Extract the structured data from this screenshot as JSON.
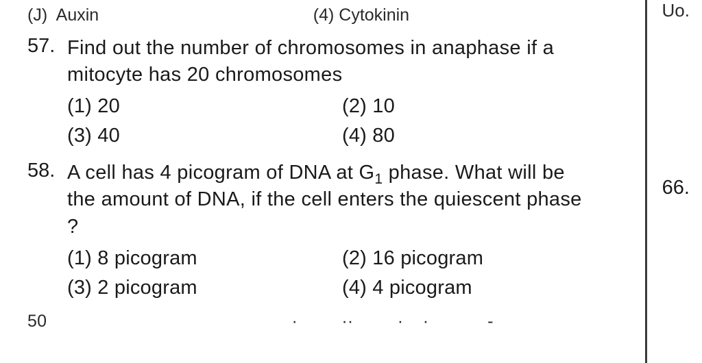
{
  "partial_top": "(J)  Auxin                                             (4) Cytokinin",
  "questions": [
    {
      "number": "57.",
      "text": "Find out the number of chromosomes in anaphase if a mitocyte has 20 chromosomes",
      "options": [
        "(1) 20",
        "(2) 10",
        "(3) 40",
        "(4) 80"
      ]
    },
    {
      "number": "58.",
      "text_html": "A cell has 4 picogram of DNA at G<sub class=\"sub\">1</sub> phase. What will be the amount of DNA, if the cell enters the quiescent phase ?",
      "options": [
        "(1) 8 picogram",
        "(2) 16 picogram",
        "(3) 2 picogram",
        "(4) 4 picogram"
      ]
    }
  ],
  "right_partial_top": "Uo.",
  "right_number": "66.",
  "partial_bottom": "50                                                  ·         ··         ·    ·            -",
  "colors": {
    "background": "#ffffff",
    "text": "#1a1a1a",
    "faded_text": "#2a2a2a",
    "border": "#3a3a3a"
  }
}
